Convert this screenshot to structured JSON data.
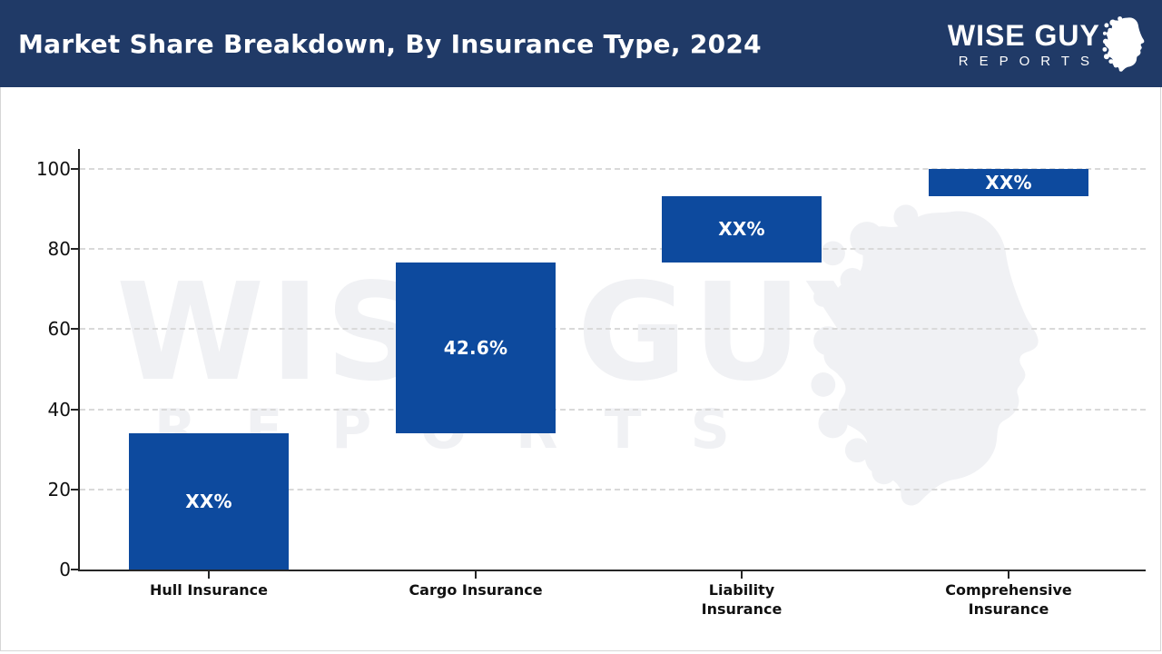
{
  "header": {
    "title": "Market Share Breakdown, By Insurance Type, 2024",
    "logo": {
      "brand": "WISE GUY",
      "sub": "REPORTS"
    }
  },
  "watermark": {
    "brand": "WISE GUY",
    "sub": "REPORTS"
  },
  "chart_data": {
    "type": "bar",
    "subtype": "waterfall",
    "title": "Market Share Breakdown, By Insurance Type, 2024",
    "categories": [
      "Hull Insurance",
      "Cargo Insurance",
      "Liability Insurance",
      "Comprehensive Insurance"
    ],
    "category_label_lines": [
      [
        "Hull Insurance"
      ],
      [
        "Cargo Insurance"
      ],
      [
        "Liability",
        "Insurance"
      ],
      [
        "Comprehensive",
        "Insurance"
      ]
    ],
    "segments": [
      {
        "category": "Hull Insurance",
        "start": 0,
        "end": 34,
        "value_label": "XX%"
      },
      {
        "category": "Cargo Insurance",
        "start": 34,
        "end": 76.6,
        "value": 42.6,
        "value_label": "42.6%"
      },
      {
        "category": "Liability Insurance",
        "start": 76.6,
        "end": 93.3,
        "value_label": "XX%"
      },
      {
        "category": "Comprehensive Insurance",
        "start": 93.3,
        "end": 100,
        "value_label": "XX%"
      }
    ],
    "ylim": [
      0,
      100
    ],
    "yticks": [
      0,
      20,
      40,
      60,
      80,
      100
    ],
    "xlabel": "",
    "ylabel": "",
    "grid": true,
    "legend": false,
    "bar_color": "#0d4a9e",
    "bar_label_color": "#ffffff"
  },
  "colors": {
    "header_bg": "#203a67",
    "bar": "#0d4a9e",
    "axis": "#262626",
    "grid": "#d9d9d9",
    "watermark": "#f0f1f4"
  }
}
